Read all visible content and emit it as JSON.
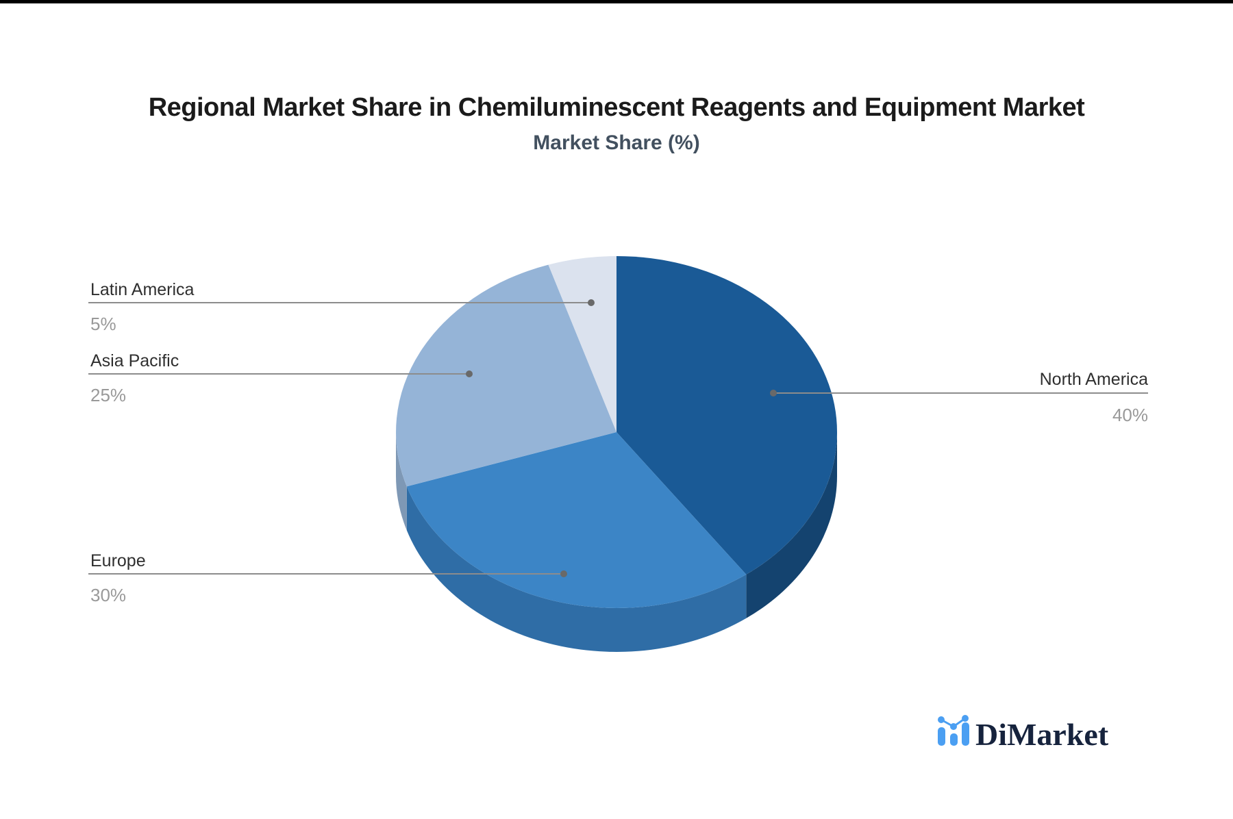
{
  "page": {
    "background": "#ffffff",
    "top_border_color": "#000000"
  },
  "chart_data": {
    "type": "pie",
    "effect": "3d",
    "title": "Regional Market Share in Chemiluminescent Reagents and Equipment Market",
    "subtitle": "Market Share (%)",
    "unit": "%",
    "start_angle_deg": 0,
    "direction": "clockwise",
    "legend": "none",
    "connector_color": "#8c8c8c",
    "connector_dot_color": "#696969",
    "label_name_color": "#2f2f2f",
    "label_value_color": "#999999",
    "slices": [
      {
        "label": "North America",
        "value": 40,
        "display_value": "40%",
        "color": "#1a5a96",
        "rim_color": "#14436f",
        "label_side": "right"
      },
      {
        "label": "Europe",
        "value": 30,
        "display_value": "30%",
        "color": "#3c85c6",
        "rim_color": "#2f6da6",
        "label_side": "left"
      },
      {
        "label": "Asia Pacific",
        "value": 25,
        "display_value": "25%",
        "color": "#95b4d7",
        "rim_color": "#7e98b5",
        "label_side": "left"
      },
      {
        "label": "Latin America",
        "value": 5,
        "display_value": "5%",
        "color": "#dbe2ee",
        "rim_color": "#b9c4d6",
        "label_side": "left"
      }
    ]
  },
  "branding": {
    "logo_text": "DiMarket",
    "logo_icon": "bar-chart-logo-icon",
    "text_color": "#16233d",
    "icon_color": "#4b9ff2"
  }
}
